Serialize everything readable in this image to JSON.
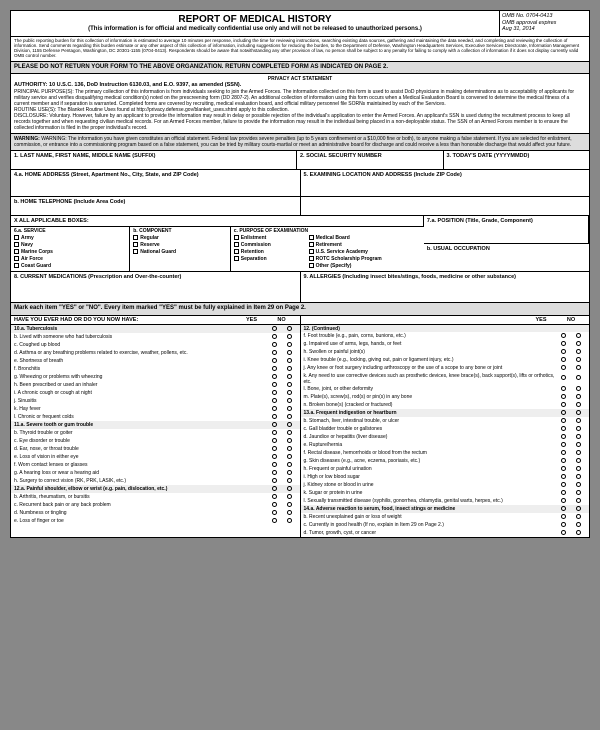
{
  "header": {
    "title": "REPORT OF MEDICAL HISTORY",
    "subtitle": "(This information is for official and medically confidential use only and will not be released to unauthorized persons.)",
    "omb1": "OMB No. 0704-0413",
    "omb2": "OMB approval expires",
    "omb3": "Aug 31, 2014"
  },
  "burden": "The public reporting burden for this collection of information is estimated to average 10 minutes per response, including the time for reviewing instructions, searching existing data sources, gathering and maintaining the data needed, and completing and reviewing the collection of information. Send comments regarding this burden estimate or any other aspect of this collection of information, including suggestions for reducing the burden, to the Department of Defense, Washington Headquarters Services, Executive Services Directorate, Information Management Division, 1155 Defense Pentagon, Washington, DC 20301-1155 (0704-0413). Respondents should be aware that notwithstanding any other provision of law, no person shall be subject to any penalty for failing to comply with a collection of information if it does not display currently valid OMB control number.",
  "banner1": "PLEASE DO NOT RETURN YOUR FORM TO THE ABOVE ORGANIZATION.  RETURN COMPLETED FORM AS INDICATED ON PAGE 2.",
  "privacy_title": "PRIVACY ACT STATEMENT",
  "authority": "AUTHORITY:  10 U.S.C. 136, DoD Instruction 6130.03, and E.O. 9397, as amended (SSN).",
  "purpose": "PRINCIPAL PURPOSE(S):  The primary collection of this information is from individuals seeking to join the Armed Forces.  The information collected on this form is used to assist DoD physicians in making determinations as to acceptability of applicants for military service and verifies disqualifying medical condition(s) noted on the prescreening form (DD 2807-2).  An additional collection of information using this form occurs when a Medical Evaluation Board is convened to determine the medical fitness of a current member and if separation is warranted.  Completed forms are covered by recruiting, medical evaluation board, and official military personnel file SORNs maintained by each of the Services.",
  "routine": "ROUTINE USE(S):  The Blanket Routine Uses found at http://privacy.defense.gov/blanket_uses.shtml apply to this collection.",
  "disclosure": "DISCLOSURE:  Voluntary.  However, failure by an applicant to provide the information may result in delay or possible rejection of the individual's application to enter the Armed Forces.  An applicant's SSN is used during the recruitment process to keep all records together and when requesting civilian medical records.  For an Armed Forces member, failure to provide the information may result in the individual being placed in a non-deployable status. The SSN of an Armed Forces member is to ensure the collected information is filed in the proper individual's record.",
  "warning": "WARNING:  The information you have given constitutes an official statement.  Federal law provides severe penalties (up to 5 years confinement or a $10,000 fine or both), to anyone making a false statement.  If you are selected for enlistment, commission, or entrance into a commissioning program based on a false statement, you can be tried by military courts-martial or meet an administrative board for discharge and could receive a less than honorable discharge that would affect your future.",
  "fields": {
    "f1": "1.  LAST NAME, FIRST NAME, MIDDLE NAME (SUFFIX)",
    "f2": "2.  SOCIAL SECURITY NUMBER",
    "f3": "3.  TODAY'S DATE (YYYYMMDD)",
    "f4a": "4.a.  HOME ADDRESS (Street, Apartment No., City, State, and ZIP Code)",
    "f5": "5.  EXAMINING LOCATION AND ADDRESS (Include ZIP Code)",
    "f4b": "b. HOME TELEPHONE (Include Area Code)",
    "xall": "X ALL APPLICABLE BOXES:",
    "f6a": "6.a. SERVICE",
    "f6b": "b. COMPONENT",
    "f6c": "c. PURPOSE OF EXAMINATION",
    "f7a": "7.a. POSITION (Title, Grade, Component)",
    "f7b": "b. USUAL OCCUPATION",
    "f8": "8.  CURRENT MEDICATIONS (Prescription and Over-the-counter)",
    "f9": "9.  ALLERGIES (Including insect bites/stings, foods, medicine or other substance)"
  },
  "services": {
    "a": [
      "Army",
      "Navy",
      "Marine Corps",
      "Air Force",
      "Coast Guard"
    ],
    "b": [
      "Regular",
      "Reserve",
      "National Guard"
    ],
    "c1": [
      "Enlistment",
      "Commission",
      "Retention",
      "Separation"
    ],
    "c2": [
      "Medical Board",
      "Retirement",
      "U.S. Service Academy",
      "ROTC Scholarship Program"
    ],
    "other": "Other (Specify)"
  },
  "qbanner": "Mark each item \"YES\" or \"NO\".  Every item marked \"YES\" must be fully explained in Item 29 on Page 2.",
  "qhdr_left": "HAVE YOU EVER HAD OR DO YOU NOW HAVE:",
  "yes": "YES",
  "no": "NO",
  "left": [
    {
      "t": "10.a.  Tuberculosis",
      "h": 1
    },
    {
      "t": "b.  Lived with someone who had tuberculosis"
    },
    {
      "t": "c.  Coughed up blood"
    },
    {
      "t": "d.  Asthma or any breathing problems related to exercise, weather, pollens, etc."
    },
    {
      "t": "e.  Shortness of breath"
    },
    {
      "t": "f.  Bronchitis"
    },
    {
      "t": "g.  Wheezing or problems with wheezing"
    },
    {
      "t": "h.  Been prescribed or used an inhaler"
    },
    {
      "t": "i.  A chronic cough or cough at night"
    },
    {
      "t": "j.  Sinusitis"
    },
    {
      "t": "k.  Hay fever"
    },
    {
      "t": "l.  Chronic or frequent colds"
    },
    {
      "t": "11.a.  Severe tooth or gum trouble",
      "h": 1
    },
    {
      "t": "b.  Thyroid trouble or goiter"
    },
    {
      "t": "c.  Eye disorder or trouble"
    },
    {
      "t": "d.  Ear, nose, or throat trouble"
    },
    {
      "t": "e.  Loss of vision in either eye"
    },
    {
      "t": "f.  Worn contact lenses or glasses"
    },
    {
      "t": "g.  A hearing loss or wear a hearing aid"
    },
    {
      "t": "h.  Surgery to correct vision (RK, PRK, LASIK, etc.)"
    },
    {
      "t": "12.a.  Painful shoulder, elbow or wrist (e.g. pain, dislocation, etc.)",
      "h": 1
    },
    {
      "t": "b.  Arthritis, rheumatism, or bursitis"
    },
    {
      "t": "c.  Recurrent back pain or any back problem"
    },
    {
      "t": "d.  Numbness or tingling"
    },
    {
      "t": "e.  Loss of finger or toe"
    }
  ],
  "right": [
    {
      "t": "12.  (Continued)",
      "h": 1,
      "nr": 1
    },
    {
      "t": "f.  Foot trouble (e.g., pain, corns, bunions, etc.)"
    },
    {
      "t": "g.  Impaired use of arms, legs, hands, or feet"
    },
    {
      "t": "h.  Swollen or painful joint(s)"
    },
    {
      "t": "i.  Knee trouble (e.g., locking, giving out, pain or ligament injury, etc.)"
    },
    {
      "t": "j.  Any knee or foot surgery including arthroscopy or the use of a scope to any bone or joint"
    },
    {
      "t": "k.  Any need to use corrective devices such as prosthetic devices, knee brace(s), back support(s), lifts or orthotics, etc."
    },
    {
      "t": "l.  Bone, joint, or other deformity"
    },
    {
      "t": "m. Plate(s), screw(s), rod(s) or pin(s) in any bone"
    },
    {
      "t": "n.  Broken bone(s) (cracked or fractured)"
    },
    {
      "t": "13.a.  Frequent indigestion or heartburn",
      "h": 1
    },
    {
      "t": "b.  Stomach, liver, intestinal trouble, or ulcer"
    },
    {
      "t": "c.  Gall bladder trouble or gallstones"
    },
    {
      "t": "d.  Jaundice or hepatitis (liver disease)"
    },
    {
      "t": "e.  Rupture/hernia"
    },
    {
      "t": "f.  Rectal disease, hemorrhoids or blood from the rectum"
    },
    {
      "t": "g.  Skin diseases (e.g., acne, eczema, psoriasis, etc.)"
    },
    {
      "t": "h.  Frequent or painful urination"
    },
    {
      "t": "i.  High or low blood sugar"
    },
    {
      "t": "j.  Kidney stone or blood in urine"
    },
    {
      "t": "k.  Sugar or protein in urine"
    },
    {
      "t": "l.  Sexually transmitted disease (syphilis, gonorrhea, chlamydia, genital warts, herpes, etc.)"
    },
    {
      "t": "14.a.  Adverse reaction to serum, food, insect stings or medicine",
      "h": 1
    },
    {
      "t": "b.  Recent unexplained gain or loss of weight"
    },
    {
      "t": "c.  Currently in good health (If no, explain in Item 29 on Page 2.)"
    },
    {
      "t": "d.  Tumor, growth, cyst, or cancer"
    }
  ]
}
